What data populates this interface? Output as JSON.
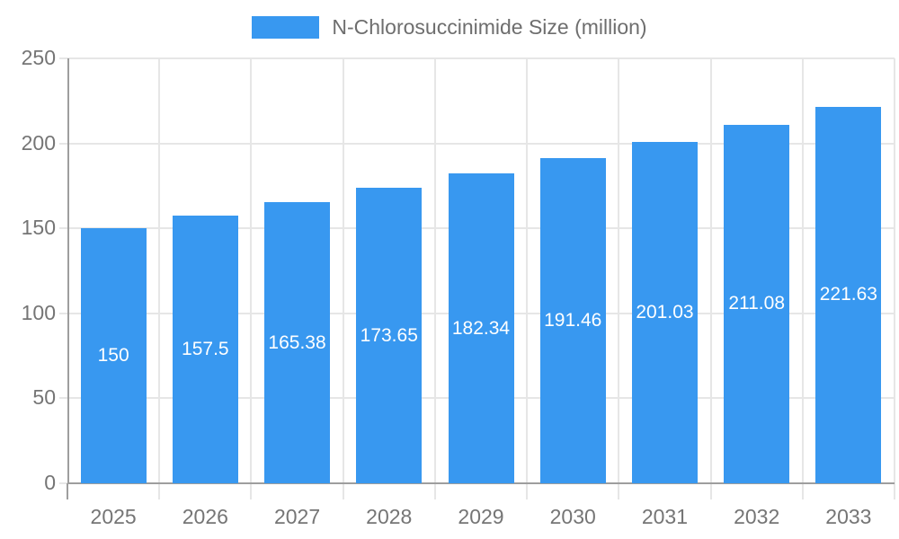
{
  "chart_data": {
    "type": "bar",
    "title": "N-Chlorosuccinimide Size (million)",
    "categories": [
      "2025",
      "2026",
      "2027",
      "2028",
      "2029",
      "2030",
      "2031",
      "2032",
      "2033"
    ],
    "values": [
      150,
      157.5,
      165.38,
      173.65,
      182.34,
      191.46,
      201.03,
      211.08,
      221.63
    ],
    "value_labels": [
      "150",
      "157.5",
      "165.38",
      "173.65",
      "182.34",
      "191.46",
      "201.03",
      "211.08",
      "221.63"
    ],
    "xlabel": "",
    "ylabel": "",
    "ylim": [
      0,
      250
    ],
    "ytick_step": 50,
    "ytick_labels": [
      "0",
      "50",
      "100",
      "150",
      "200",
      "250"
    ],
    "grid": true,
    "legend_position": "top",
    "value_label_position": "inside-middle"
  },
  "legend": {
    "label": "N-Chlorosuccinimide Size (million)"
  },
  "colors": {
    "bar": "#3898f0",
    "grid": "#e6e6e6",
    "axis": "#9e9e9e",
    "tick_text": "#757575",
    "legend_text": "#6e6e6e",
    "value_text": "#ffffff",
    "background": "#ffffff"
  }
}
